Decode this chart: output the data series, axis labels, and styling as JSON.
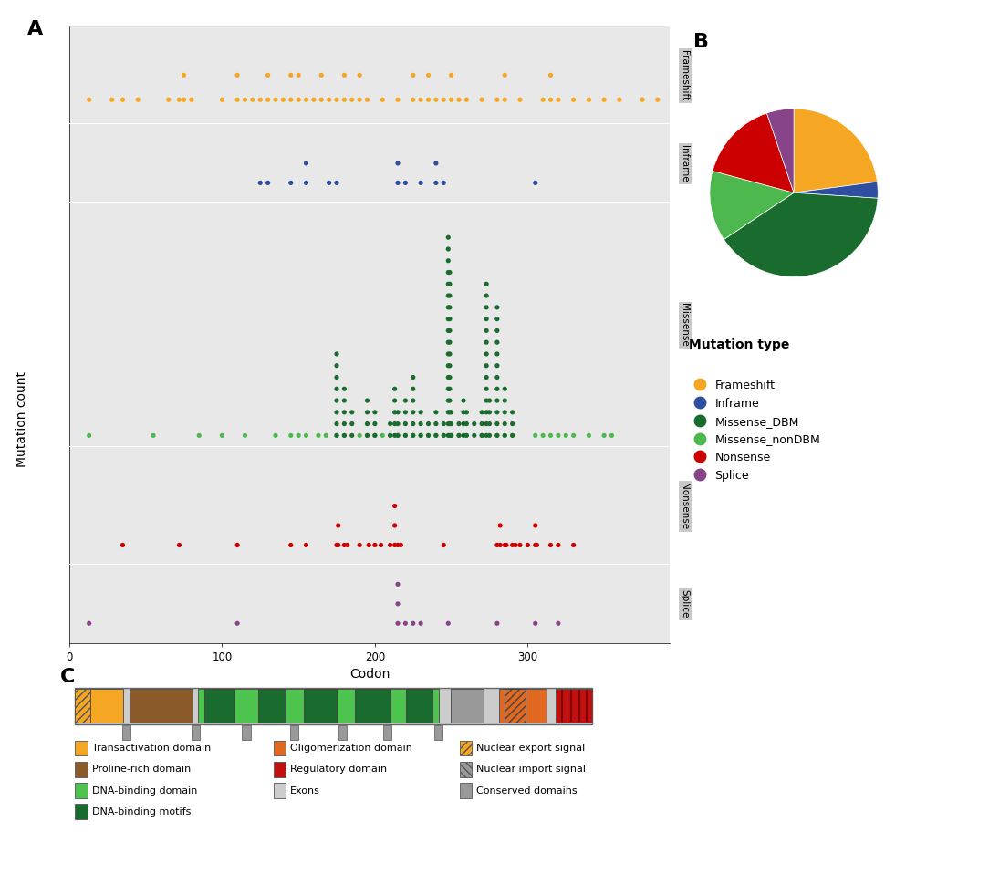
{
  "panel_a_label": "A",
  "panel_b_label": "B",
  "panel_c_label": "C",
  "colors": {
    "Frameshift": "#F5A623",
    "Inframe": "#2E4FA0",
    "Missense_DBM": "#1A6B2E",
    "Missense_nonDBM": "#4DB84D",
    "Nonsense": "#CC0000",
    "Splice": "#884488"
  },
  "pie_sizes": [
    22,
    3,
    38,
    13,
    15,
    5
  ],
  "pie_colors": [
    "#F5A623",
    "#2E4FA0",
    "#1A6B2E",
    "#4DB84D",
    "#CC0000",
    "#884488"
  ],
  "xlim": [
    0,
    393
  ],
  "bg_color": "#E8E8E8",
  "strip_color": "#C8C8C8",
  "white": "#FFFFFF",
  "frameshift_codons": [
    13,
    28,
    35,
    45,
    65,
    72,
    75,
    80,
    100,
    110,
    115,
    120,
    125,
    130,
    135,
    140,
    145,
    150,
    155,
    160,
    165,
    170,
    175,
    180,
    185,
    190,
    195,
    205,
    215,
    225,
    230,
    235,
    240,
    245,
    250,
    255,
    260,
    270,
    280,
    285,
    295,
    310,
    315,
    320,
    330,
    340,
    350,
    360,
    375,
    385
  ],
  "frameshift_counts": [
    1,
    1,
    1,
    1,
    1,
    1,
    2,
    1,
    1,
    2,
    1,
    1,
    1,
    2,
    1,
    1,
    2,
    2,
    1,
    1,
    2,
    1,
    1,
    2,
    1,
    2,
    1,
    1,
    1,
    2,
    1,
    2,
    1,
    1,
    2,
    1,
    1,
    1,
    1,
    2,
    1,
    1,
    2,
    1,
    1,
    1,
    1,
    1,
    1,
    1
  ],
  "inframe_codons": [
    125,
    130,
    145,
    155,
    170,
    175,
    215,
    220,
    230,
    240,
    245,
    305
  ],
  "inframe_counts": [
    1,
    1,
    1,
    2,
    1,
    1,
    2,
    1,
    1,
    2,
    1,
    1
  ],
  "missense_dbm_codons": [
    175,
    180,
    185,
    195,
    200,
    210,
    213,
    215,
    220,
    225,
    230,
    235,
    240,
    245,
    248,
    249,
    250,
    255,
    258,
    260,
    265,
    270,
    273,
    275,
    280,
    285,
    290
  ],
  "missense_dbm_counts": [
    8,
    5,
    3,
    4,
    3,
    2,
    5,
    3,
    4,
    6,
    3,
    2,
    3,
    2,
    18,
    15,
    3,
    2,
    4,
    3,
    2,
    3,
    14,
    4,
    12,
    5,
    3
  ],
  "missense_nondbm_codons": [
    13,
    55,
    85,
    100,
    115,
    135,
    145,
    150,
    155,
    163,
    168,
    175,
    180,
    190,
    195,
    200,
    205,
    210,
    215,
    220,
    225,
    230,
    235,
    240,
    245,
    250,
    255,
    260,
    270,
    280,
    285,
    290,
    305,
    310,
    315,
    320,
    325,
    330,
    340,
    350,
    355
  ],
  "missense_nondbm_counts": [
    1,
    1,
    1,
    1,
    1,
    1,
    1,
    1,
    1,
    1,
    1,
    1,
    1,
    1,
    1,
    1,
    1,
    1,
    1,
    1,
    1,
    1,
    1,
    1,
    1,
    1,
    1,
    1,
    1,
    1,
    1,
    1,
    1,
    1,
    1,
    1,
    1,
    1,
    1,
    1,
    1
  ],
  "nonsense_codons": [
    35,
    72,
    110,
    145,
    155,
    175,
    176,
    180,
    182,
    190,
    196,
    200,
    204,
    210,
    213,
    215,
    217,
    245,
    280,
    282,
    285,
    286,
    290,
    292,
    295,
    300,
    305,
    306,
    315,
    320,
    330
  ],
  "nonsense_counts": [
    1,
    1,
    1,
    1,
    1,
    1,
    2,
    1,
    1,
    1,
    1,
    1,
    1,
    1,
    3,
    1,
    1,
    1,
    1,
    2,
    1,
    1,
    1,
    1,
    1,
    1,
    2,
    1,
    1,
    1,
    1
  ],
  "splice_codons": [
    13,
    110,
    215,
    220,
    225,
    230,
    248,
    280,
    305,
    320
  ],
  "splice_counts": [
    1,
    1,
    3,
    1,
    1,
    1,
    1,
    1,
    1,
    1
  ]
}
